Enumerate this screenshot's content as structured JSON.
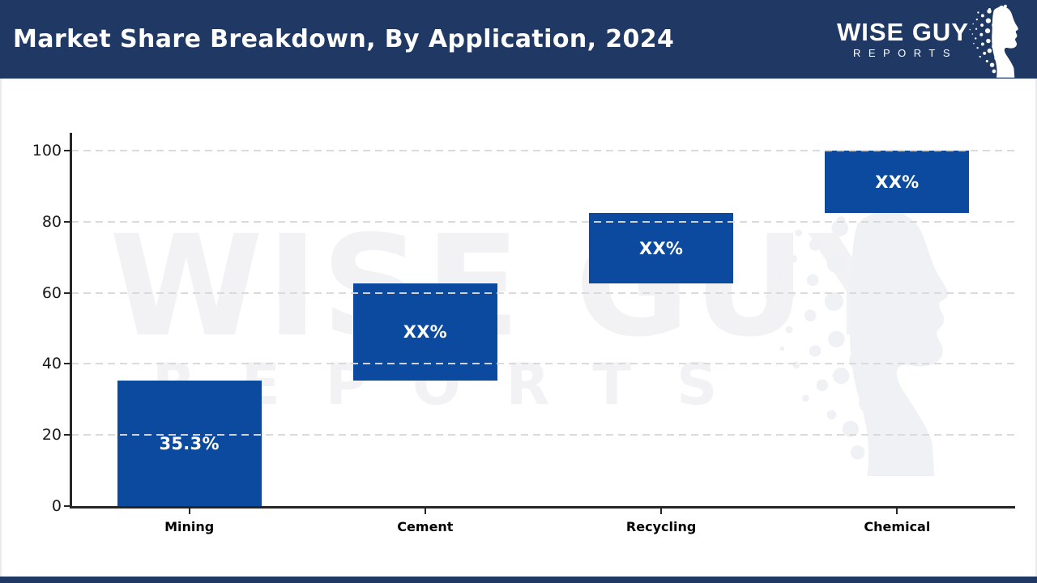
{
  "header": {
    "title": "Market Share Breakdown, By Application, 2024",
    "logo": {
      "line1": "WISE GUY",
      "line2": "REPORTS"
    }
  },
  "watermark": {
    "line1": "WISE GUY",
    "line2": "REPORTS"
  },
  "colors": {
    "header_bg": "#1f3864",
    "bar_blue": "#0b4a9e",
    "axis": "#262626",
    "grid": "#d9d9d9",
    "watermark": "#f2f2f4"
  },
  "chart_data": {
    "type": "bar",
    "subtype": "floating-segment-waterfall",
    "title": "Market Share Breakdown, By Application, 2024",
    "categories": [
      "Mining",
      "Cement",
      "Recycling",
      "Chemical"
    ],
    "segments": [
      {
        "category": "Mining",
        "start": 0,
        "end": 35.3,
        "label": "35.3%"
      },
      {
        "category": "Cement",
        "start": 35.3,
        "end": 62.6,
        "label": "XX%"
      },
      {
        "category": "Recycling",
        "start": 62.6,
        "end": 82.4,
        "label": "XX%"
      },
      {
        "category": "Chemical",
        "start": 82.4,
        "end": 100,
        "label": "XX%"
      }
    ],
    "xlabel": "",
    "ylabel": "",
    "ylim": [
      0,
      100
    ],
    "yticks": [
      0,
      20,
      40,
      60,
      80,
      100
    ],
    "grid": true,
    "grid_axis": "y",
    "grid_style": "dashed",
    "legend_position": "none",
    "bar_color": "#0b4a9e",
    "value_label_color": "#ffffff",
    "axis_color": "#262626",
    "grid_color": "#d9d9d9",
    "tick_label_color": "#1a1a1a"
  }
}
